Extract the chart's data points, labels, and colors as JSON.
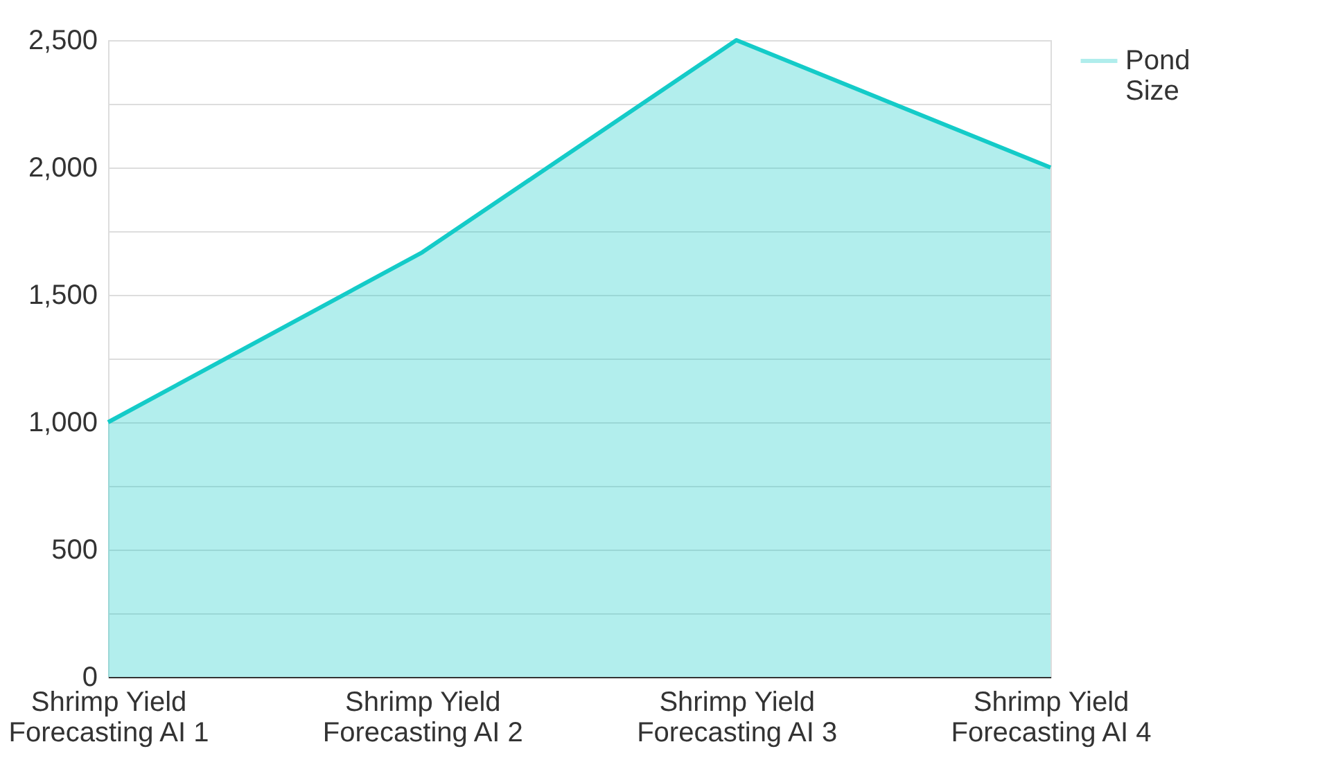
{
  "chart_data": {
    "type": "area",
    "categories": [
      "Shrimp Yield Forecasting AI 1",
      "Shrimp Yield Forecasting AI 2",
      "Shrimp Yield Forecasting AI 3",
      "Shrimp Yield Forecasting AI 4"
    ],
    "series": [
      {
        "name": "Pond Size",
        "color": "#14cbc8",
        "values": [
          1000,
          1667,
          2500,
          2000
        ]
      }
    ],
    "ylim": [
      0,
      2500
    ],
    "yticks": [
      0,
      {
        "value": 250,
        "label": null
      },
      500,
      {
        "value": 750,
        "label": null
      },
      {
        "value": 1000,
        "label": "1,000"
      },
      {
        "value": 1250,
        "label": null
      },
      {
        "value": 1500,
        "label": "1,500"
      },
      {
        "value": 1750,
        "label": null
      },
      {
        "value": 2000,
        "label": "2,000"
      },
      {
        "value": 2250,
        "label": null
      },
      {
        "value": 2500,
        "label": "2,500"
      }
    ],
    "grid": "y",
    "legend": "top right"
  }
}
